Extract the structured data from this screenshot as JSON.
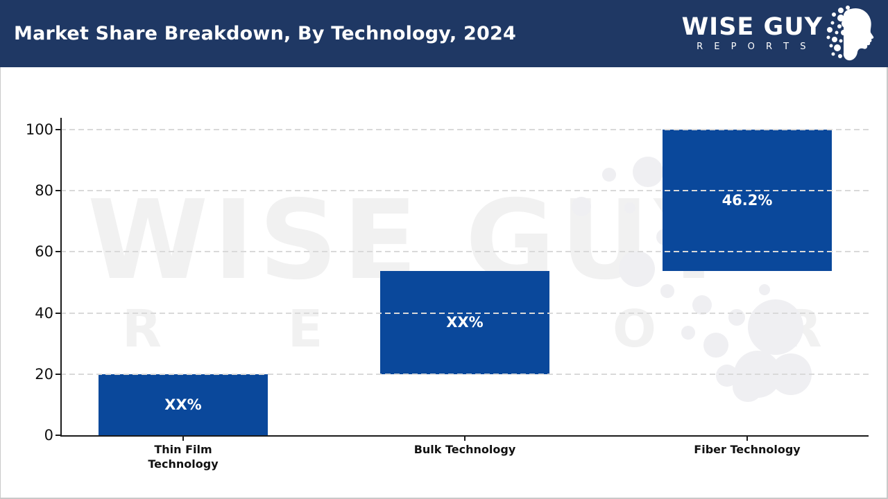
{
  "header": {
    "title": "Market Share Breakdown, By Technology, 2024",
    "logo_line1": "WISE GUY",
    "logo_line2": "R E P O R T S",
    "bg_color": "#1f3864"
  },
  "watermark": {
    "line1": "WISE GUY",
    "line2": "R E P O R T S"
  },
  "chart_data": {
    "type": "bar",
    "subtype": "waterfall-segments",
    "title": "Market Share Breakdown, By Technology, 2024",
    "categories": [
      "Thin Film\nTechnology",
      "Bulk Technology",
      "Fiber Technology"
    ],
    "segments": [
      {
        "category": "Thin Film\nTechnology",
        "start": 0,
        "end": 20,
        "label": "XX%"
      },
      {
        "category": "Bulk Technology",
        "start": 20,
        "end": 53.8,
        "label": "XX%"
      },
      {
        "category": "Fiber Technology",
        "start": 53.8,
        "end": 100,
        "label": "46.2%"
      }
    ],
    "xlabel": "",
    "ylabel": "",
    "yticks": [
      0,
      20,
      40,
      60,
      80,
      100
    ],
    "ylim": [
      0,
      105
    ],
    "grid": true,
    "grid_style": "dashed",
    "legend": "none",
    "bar_color": "#0a489b",
    "bar_label_color": "#ffffff"
  }
}
